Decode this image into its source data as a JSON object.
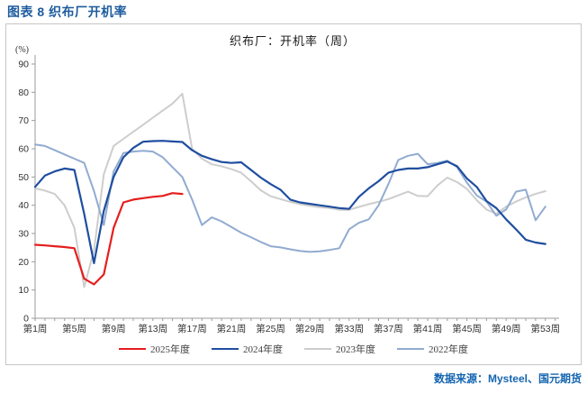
{
  "page_title": "图表 8 织布厂开机率",
  "source_note": "数据来源：Mysteel、国元期货",
  "chart_data": {
    "type": "line",
    "title": "织布厂：开机率（周）",
    "y_unit_label": "(%)",
    "ylim": [
      0,
      90
    ],
    "y_ticks": [
      0,
      10,
      20,
      30,
      40,
      50,
      60,
      70,
      80,
      90
    ],
    "x_tick_labels": [
      "第1周",
      "第5周",
      "第9周",
      "第13周",
      "第17周",
      "第21周",
      "第25周",
      "第29周",
      "第33周",
      "第37周",
      "第41周",
      "第45周",
      "第49周",
      "第53周"
    ],
    "x_tick_weeks": [
      1,
      5,
      9,
      13,
      17,
      21,
      25,
      29,
      33,
      37,
      41,
      45,
      49,
      53
    ],
    "weeks_total": 53,
    "grid": false,
    "legend_position": "bottom",
    "axis_color": "#9b9b9b",
    "series": [
      {
        "name": "2025年度",
        "color": "#e51e1e",
        "width": 2.2,
        "start_week": 1,
        "values": [
          26,
          25.8,
          25.5,
          25.2,
          24.8,
          14,
          12,
          15.5,
          32,
          41,
          42,
          42.5,
          43,
          43.3,
          44.3,
          44
        ]
      },
      {
        "name": "2024年度",
        "color": "#1f4e9f",
        "width": 2.2,
        "start_week": 1,
        "values": [
          46.5,
          50.5,
          52,
          53,
          52.5,
          37,
          19.5,
          38,
          50,
          57,
          60.3,
          62.5,
          62.7,
          62.8,
          62.6,
          62.4,
          59.5,
          57.5,
          56.3,
          55.3,
          55,
          55.2,
          52.5,
          49.8,
          47.5,
          45.5,
          42,
          41,
          40.5,
          40,
          39.5,
          39,
          38.7,
          43,
          46,
          48.5,
          51.5,
          52.5,
          53,
          53,
          53.5,
          54.5,
          55.5,
          53.8,
          49.5,
          46.5,
          41.5,
          39,
          35,
          31.5,
          27.8,
          26.8,
          26.3
        ]
      },
      {
        "name": "2023年度",
        "color": "#cdcdcd",
        "width": 2,
        "start_week": 1,
        "values": [
          46,
          45.2,
          44,
          40,
          32,
          11,
          24,
          51,
          61,
          63.5,
          66,
          68.5,
          71,
          73.5,
          76,
          79.5,
          60,
          56.5,
          54.5,
          53.8,
          52.8,
          51.5,
          48.5,
          45.3,
          43.2,
          42.2,
          41.2,
          40.4,
          39.8,
          39.3,
          39,
          38.4,
          38.4,
          39.4,
          40.4,
          41.2,
          42.2,
          43.5,
          44.8,
          43.3,
          43.2,
          47,
          49.8,
          48.2,
          45.8,
          41.8,
          38.5,
          37,
          39.5,
          41.3,
          42.8,
          44,
          45
        ]
      },
      {
        "name": "2022年度",
        "color": "#91abd1",
        "width": 2,
        "start_week": 1,
        "values": [
          61.5,
          61,
          59.5,
          58,
          56.5,
          55,
          45,
          33,
          52,
          58.5,
          59,
          59.3,
          59,
          57,
          53.5,
          50,
          42,
          33,
          35.7,
          34.3,
          32.3,
          30.3,
          28.7,
          27,
          25.5,
          25.1,
          24.4,
          23.8,
          23.5,
          23.7,
          24.2,
          24.8,
          31.5,
          33.8,
          35,
          40,
          47.5,
          56,
          57.5,
          58.2,
          54.5,
          55,
          55.8,
          53.5,
          48,
          43.5,
          41.3,
          36.3,
          38.5,
          44.8,
          45.5,
          34.7,
          39.5
        ]
      }
    ]
  }
}
